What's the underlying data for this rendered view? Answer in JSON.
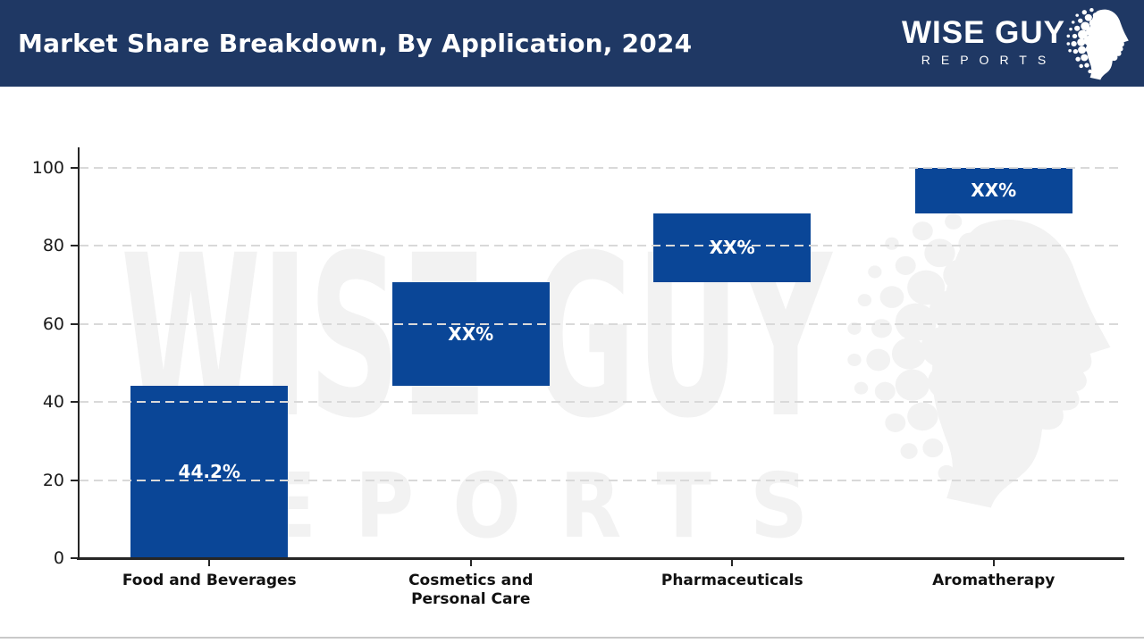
{
  "header": {
    "title": "Market Share Breakdown, By Application, 2024",
    "logo": {
      "line1": "WISE GUY",
      "line2": "REPORTS"
    }
  },
  "watermark": {
    "line1": "WISE GUY",
    "line2": "REPORTS"
  },
  "colors": {
    "header_navy": "#1f3864",
    "bar_blue": "#0a4697",
    "grid_gray": "#d9d9d9",
    "axis_dark": "#262626",
    "watermark_gray": "#f2f2f2"
  },
  "chart_data": {
    "type": "bar",
    "subtype": "waterfall",
    "title": "Market Share Breakdown, By Application, 2024",
    "categories": [
      "Food and Beverages",
      "Cosmetics and\nPersonal Care",
      "Pharmaceuticals",
      "Aromatherapy"
    ],
    "segments": [
      {
        "category": "Food and Beverages",
        "start": 0,
        "end": 44.2,
        "label": "44.2%"
      },
      {
        "category": "Cosmetics and\nPersonal Care",
        "start": 44.2,
        "end": 70.7,
        "label": "XX%"
      },
      {
        "category": "Pharmaceuticals",
        "start": 70.7,
        "end": 88.3,
        "label": "XX%"
      },
      {
        "category": "Aromatherapy",
        "start": 88.3,
        "end": 100,
        "label": "XX%"
      }
    ],
    "xlabel": "",
    "ylabel": "",
    "yticks": [
      0,
      20,
      40,
      60,
      80,
      100
    ],
    "ylim": [
      0,
      105
    ],
    "grid": "horizontal-dashed",
    "legend": false
  }
}
